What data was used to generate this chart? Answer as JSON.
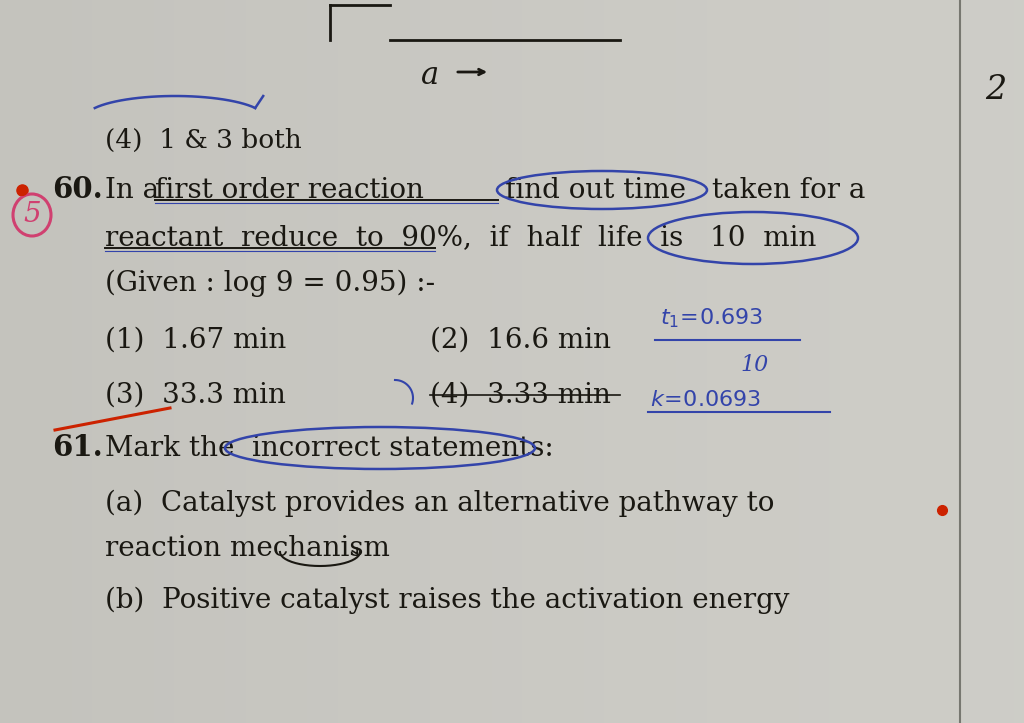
{
  "background_color": "#cccbc5",
  "bg_gradient": true,
  "arrow_text": "a",
  "item4_text": "(4)  1 & 3 both",
  "q60_num": "60.",
  "q60_circle_num": "5",
  "q60_line1a": "In a first order reaction",
  "q60_line1b": "find out time",
  "q60_line1c": "taken for a",
  "q60_line2a": "reactant reduce to 90%,",
  "q60_line2b": " if half life is",
  "q60_line2c": "10 min",
  "q60_line3": "(Given : log 9 = 0.95) :-",
  "opt1": "(1)  1.67 min",
  "opt2": "(2)  16.6 min",
  "opt3": "(3)  33.3 min",
  "opt4": "(4)  3.33 min",
  "hw_numerator": "t₁ = 0.693",
  "hw_denominator": "10",
  "hw_k": "k = 0.0693",
  "q61_num": "61.",
  "q61_pre": "Mark the",
  "q61_circled": "incorrect statements:",
  "q61a": "(a)  Catalyst provides an alternative pathway to",
  "q61a2": "reaction mechanism",
  "q61b": "(b)  Positive catalyst raises the activation energy",
  "margin_num": "2",
  "text_color": "#1a1812",
  "blue_color": "#3344aa",
  "red_color": "#cc2200",
  "pink_color": "#d04070",
  "line_color": "#333333"
}
